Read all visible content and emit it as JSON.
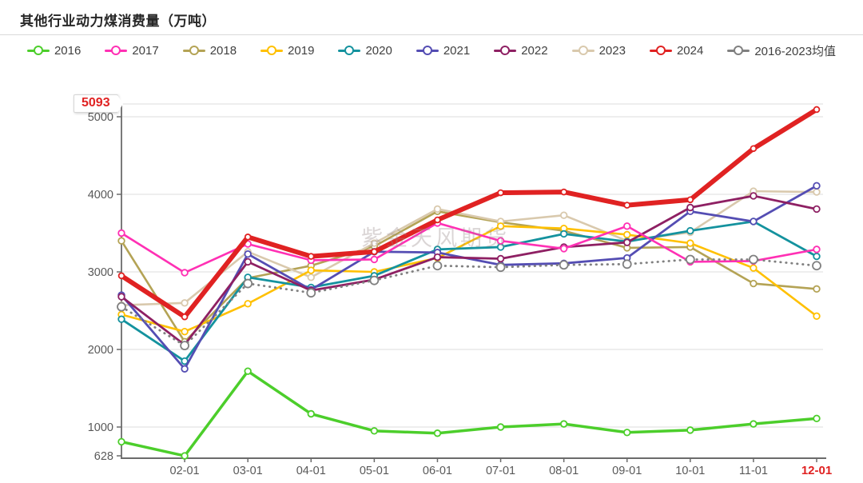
{
  "header": {
    "title": "其他行业动力煤消费量（万吨）"
  },
  "watermark": {
    "text": "紫金天风期货"
  },
  "annotation": {
    "max_label": "5093"
  },
  "chart_data": {
    "type": "line",
    "title": "其他行业动力煤消费量（万吨）",
    "legend_position": "top",
    "grid": "horizontal",
    "x_labels": [
      "",
      "02-01",
      "03-01",
      "04-01",
      "05-01",
      "06-01",
      "07-01",
      "08-01",
      "09-01",
      "10-01",
      "11-01",
      "12-01"
    ],
    "x_highlight_label": "12-01",
    "x_highlight_color": "#e02222",
    "y_ticks": [
      628,
      1000,
      2000,
      3000,
      4000,
      5000
    ],
    "y_range": [
      628,
      5150
    ],
    "axis_text_color": "#595959",
    "series": [
      {
        "name": "2016",
        "color": "#4cce2b",
        "width": 3.5,
        "z": 8,
        "values": [
          810,
          628,
          1720,
          1170,
          950,
          920,
          1000,
          1040,
          930,
          960,
          1040,
          1110
        ]
      },
      {
        "name": "2017",
        "color": "#ff30b4",
        "width": 2.6,
        "z": 7,
        "values": [
          3500,
          2990,
          3360,
          3150,
          3160,
          3630,
          3400,
          3300,
          3590,
          3130,
          3140,
          3290
        ]
      },
      {
        "name": "2018",
        "color": "#b4a355",
        "width": 2.6,
        "z": 1,
        "values": [
          3400,
          2100,
          2920,
          3080,
          3330,
          3780,
          3640,
          3530,
          3310,
          3320,
          2850,
          2780
        ]
      },
      {
        "name": "2019",
        "color": "#ffc000",
        "width": 2.6,
        "z": 3,
        "values": [
          2450,
          2230,
          2590,
          3020,
          3000,
          3180,
          3590,
          3560,
          3480,
          3370,
          3050,
          2430
        ]
      },
      {
        "name": "2020",
        "color": "#14929e",
        "width": 2.8,
        "z": 4,
        "values": [
          2390,
          1850,
          2930,
          2800,
          2950,
          3290,
          3320,
          3490,
          3390,
          3530,
          3650,
          3200
        ]
      },
      {
        "name": "2021",
        "color": "#544db3",
        "width": 2.8,
        "z": 5,
        "values": [
          2700,
          1750,
          3230,
          2770,
          3260,
          3250,
          3090,
          3110,
          3180,
          3780,
          3650,
          4110
        ]
      },
      {
        "name": "2022",
        "color": "#8e2063",
        "width": 2.8,
        "z": 6,
        "values": [
          2680,
          2060,
          3130,
          2760,
          2900,
          3190,
          3170,
          3320,
          3380,
          3830,
          3980,
          3810
        ]
      },
      {
        "name": "2023",
        "color": "#d9c9ad",
        "width": 2.6,
        "z": 2,
        "values": [
          2570,
          2600,
          3260,
          2930,
          3370,
          3810,
          3650,
          3730,
          3400,
          3510,
          4040,
          4030
        ]
      },
      {
        "name": "2024",
        "color": "#e02222",
        "width": 6,
        "z": 10,
        "values": [
          2950,
          2420,
          3450,
          3200,
          3260,
          3670,
          4020,
          4030,
          3860,
          3930,
          4590,
          5093
        ]
      },
      {
        "name": "2016-2023均值",
        "color": "#808080",
        "width": 2.8,
        "dotted": true,
        "z": 9,
        "values": [
          2550,
          2050,
          2850,
          2730,
          2890,
          3080,
          3060,
          3090,
          3100,
          3160,
          3160,
          3080
        ]
      }
    ]
  }
}
